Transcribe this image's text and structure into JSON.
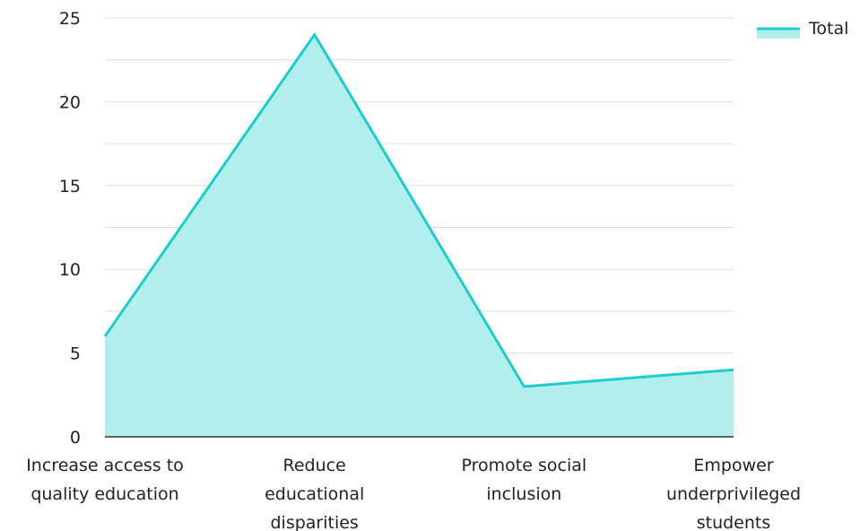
{
  "chart_data": {
    "type": "area",
    "categories": [
      [
        "Increase access to",
        "quality education"
      ],
      [
        "Reduce",
        "educational",
        "disparities"
      ],
      [
        "Promote social",
        "inclusion"
      ],
      [
        "Empower",
        "underprivileged",
        "students"
      ]
    ],
    "series": [
      {
        "name": "Total",
        "values": [
          6,
          24,
          3,
          4
        ]
      }
    ],
    "ylim": [
      0,
      25
    ],
    "yticks": [
      0,
      5,
      10,
      15,
      20,
      25
    ],
    "grid": true,
    "legend": "top-right",
    "colors": {
      "line": "#1ccdcd",
      "fill": "#b2eeec",
      "grid": "#dddddd",
      "axis": "#333333"
    }
  }
}
